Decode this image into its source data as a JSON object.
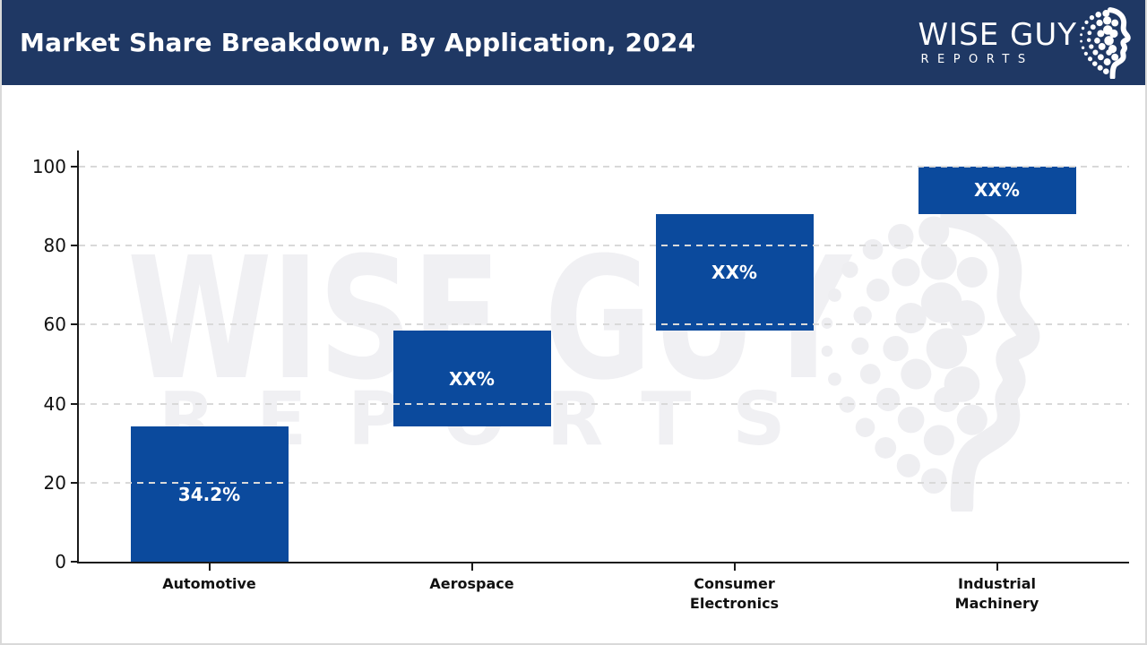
{
  "header": {
    "logo": {
      "line1": "WISE GUY",
      "line2": "REPORTS"
    }
  },
  "watermark": {
    "line1": "WISE GUY",
    "line2": "REPORTS"
  },
  "colors": {
    "header_bg": "#1f3864",
    "title_text": "#ffffff",
    "bar": "#0b4a9d",
    "bar_label_text": "#ffffff",
    "axis": "#1a1a1a",
    "tick_label_text": "#111111",
    "grid": "#d9d9d9",
    "watermark": "#f0f0f3",
    "page_border": "#d9d9d9",
    "page_bg": "#ffffff"
  },
  "chart_data": {
    "type": "bar",
    "subtype": "stacked-waterfall",
    "title": "Market Share Breakdown, By Application, 2024",
    "categories": [
      "Automotive",
      "Aerospace",
      "Consumer\nElectronics",
      "Industrial\nMachinery"
    ],
    "series": [
      {
        "segments": [
          {
            "category": "Automotive",
            "start": 0,
            "end": 34.2,
            "label": "34.2%"
          },
          {
            "category": "Aerospace",
            "start": 34.2,
            "end": 58.5,
            "label": "XX%"
          },
          {
            "category": "Consumer Electronics",
            "start": 58.5,
            "end": 88.0,
            "label": "XX%"
          },
          {
            "category": "Industrial Machinery",
            "start": 88.0,
            "end": 100.0,
            "label": "XX%"
          }
        ]
      }
    ],
    "xlabel": "",
    "ylabel": "",
    "yticks": [
      0,
      20,
      40,
      60,
      80,
      100
    ],
    "ylim": [
      0,
      104
    ],
    "grid": "horizontal-dashed",
    "legend": "none"
  }
}
